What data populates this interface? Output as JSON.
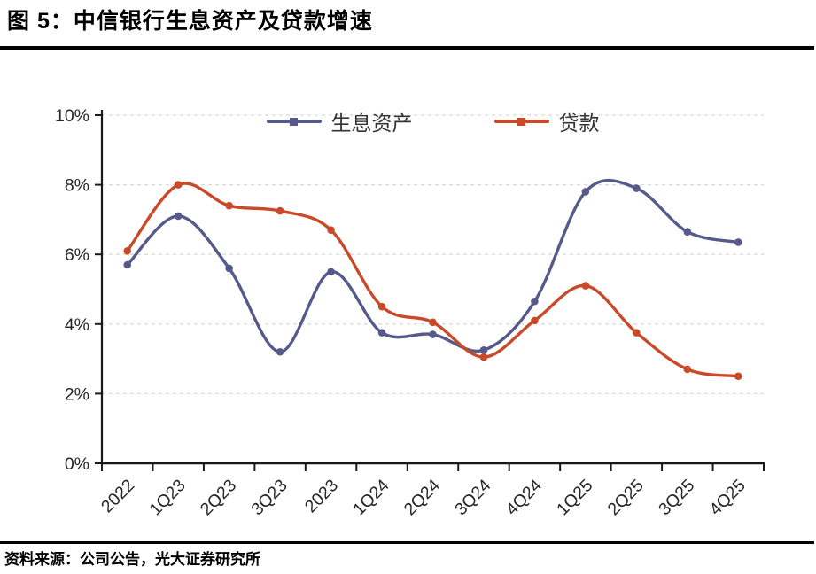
{
  "title": "图 5：中信银行生息资产及贷款增速",
  "source": "资料来源：公司公告，光大证券研究所",
  "chart_data": {
    "type": "line",
    "title": "中信银行生息资产及贷款增速",
    "xlabel": "",
    "ylabel": "",
    "categories": [
      "2022",
      "1Q23",
      "2Q23",
      "3Q23",
      "2023",
      "1Q24",
      "2Q24",
      "3Q24",
      "4Q24",
      "1Q25",
      "2Q25",
      "3Q25",
      "4Q25"
    ],
    "series": [
      {
        "name": "生息资产",
        "color": "#555A8B",
        "marker": "circle",
        "values": [
          5.7,
          7.1,
          5.6,
          3.2,
          5.5,
          3.75,
          3.7,
          3.25,
          4.65,
          7.8,
          7.9,
          6.65,
          6.35
        ]
      },
      {
        "name": "贷款",
        "color": "#C94A28",
        "marker": "circle",
        "values": [
          6.1,
          8.0,
          7.4,
          7.25,
          6.7,
          4.5,
          4.05,
          3.05,
          4.1,
          5.1,
          3.75,
          2.7,
          2.5
        ]
      }
    ],
    "ylim": [
      0,
      10
    ],
    "yticks": [
      0,
      2,
      4,
      6,
      8,
      10
    ],
    "ytick_labels": [
      "0%",
      "2%",
      "4%",
      "6%",
      "8%",
      "10%"
    ],
    "unit": "percent",
    "grid": "horizontal-dashed",
    "legend_position": "top-center",
    "line_style": "smooth",
    "colors": {
      "grid": "#D9D9D9",
      "axis": "#1A1A1A"
    }
  }
}
